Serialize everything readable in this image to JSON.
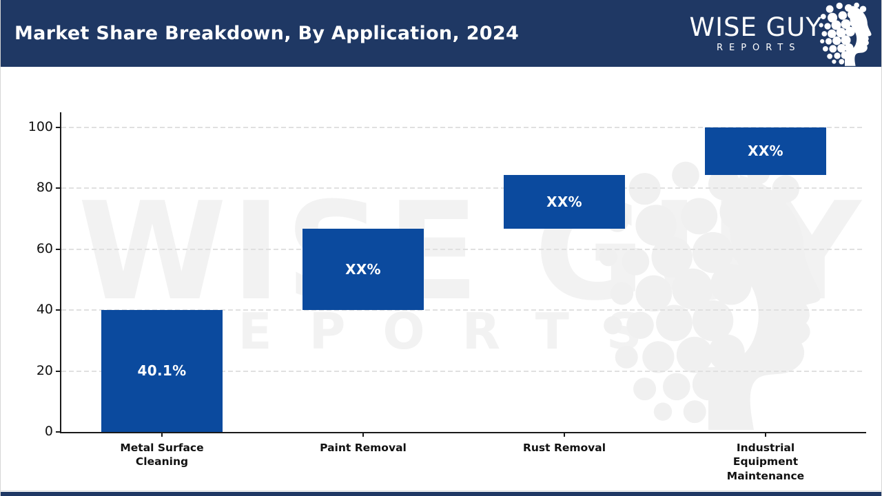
{
  "header": {
    "title": "Market Share Breakdown, By Application, 2024",
    "logo": {
      "line1": "WISE GUY",
      "line2": "REPORTS"
    }
  },
  "watermark": {
    "line1": "WISE GUY",
    "line2": "REPORTS"
  },
  "chart_data": {
    "type": "bar",
    "variant": "waterfall",
    "title": "Market Share Breakdown, By Application, 2024",
    "categories": [
      "Metal Surface Cleaning",
      "Paint Removal",
      "Rust Removal",
      "Industrial Equipment Maintenance"
    ],
    "category_label_lines": [
      [
        "Metal Surface",
        "Cleaning"
      ],
      [
        "Paint Removal"
      ],
      [
        "Rust Removal"
      ],
      [
        "Industrial",
        "Equipment",
        "Maintenance"
      ]
    ],
    "segments": [
      {
        "category": "Metal Surface Cleaning",
        "start": 0,
        "end": 40.1,
        "value": 40.1,
        "label": "40.1%"
      },
      {
        "category": "Paint Removal",
        "start": 40.1,
        "end": 66.8,
        "value": 26.7,
        "label": "XX%"
      },
      {
        "category": "Rust Removal",
        "start": 66.8,
        "end": 84.5,
        "value": 17.7,
        "label": "XX%"
      },
      {
        "category": "Industrial Equipment Maintenance",
        "start": 84.5,
        "end": 100,
        "value": 15.5,
        "label": "XX%"
      }
    ],
    "xlabel": "",
    "ylabel": "",
    "ylim": [
      0,
      105
    ],
    "yticks": [
      0,
      20,
      40,
      60,
      80,
      100
    ],
    "grid": "horizontal-dashed",
    "legend": null,
    "colors": {
      "bar": "#0b4a9e",
      "header_navy": "#1f3864",
      "grid": "#e0e0e0",
      "axis": "#1a1a1a",
      "bar_label": "#ffffff",
      "watermark": "#f2f2f2"
    }
  }
}
